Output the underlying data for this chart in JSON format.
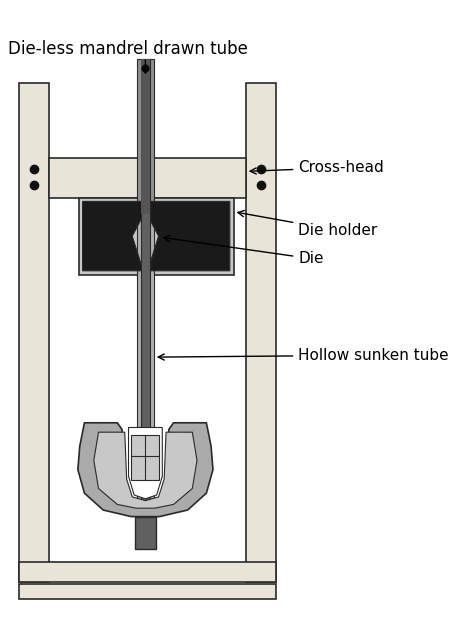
{
  "title": "Die-less mandrel drawn tube",
  "labels": {
    "cross_head": "Cross-head",
    "die_holder": "Die holder",
    "die": "Die",
    "hollow_sunken_tube": "Hollow sunken tube"
  },
  "colors": {
    "background": "#FFFFFF",
    "frame_fill": "#E8E4D8",
    "frame_edge": "#2a2a2a",
    "crosshead_fill": "#E8E4D8",
    "die_holder_fill": "#C8C8C8",
    "die_fill": "#1a1a1a",
    "die_fill2": "#2a2a2a",
    "tube_light": "#B0B0B0",
    "tube_mid": "#909090",
    "tube_dark": "#606060",
    "rod_dark": "#555555",
    "grip_outer": "#AAAAAA",
    "grip_light": "#C8C8C8",
    "grip_white": "#FFFFFF",
    "base_fill": "#E8E4D8",
    "dot_color": "#111111",
    "stem_dark": "#606060"
  },
  "figsize": [
    4.74,
    6.27
  ],
  "dpi": 100
}
